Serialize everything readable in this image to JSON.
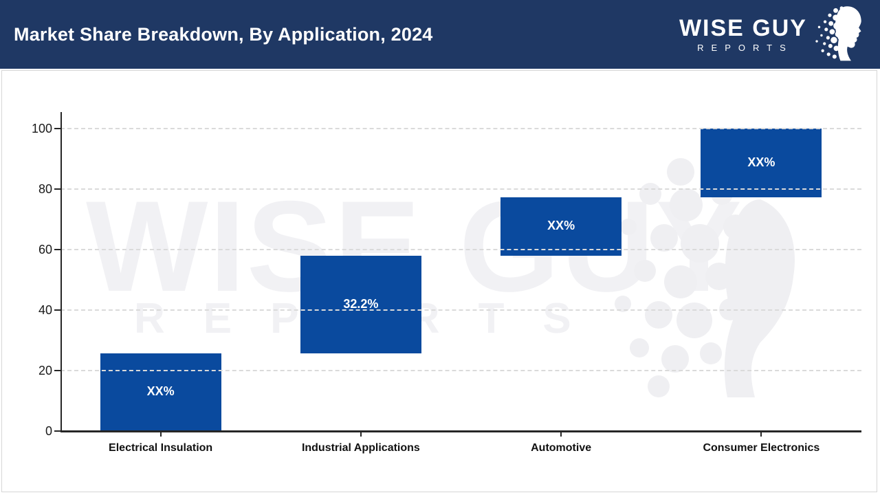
{
  "header": {
    "title": "Market Share Breakdown, By Application, 2024",
    "brand": {
      "line1": "WISE GUY",
      "line2": "REPORTS"
    }
  },
  "watermark": {
    "line1": "WISE GUY",
    "line2": "REPORTS"
  },
  "colors": {
    "header_bg": "#1f3864",
    "bar": "#0a4a9e",
    "grid": "#dadada",
    "axis": "#262626",
    "bar_label_text": "#ffffff",
    "watermark_text": "#f1f1f4"
  },
  "chart_data": {
    "type": "bar",
    "subtype": "waterfall-floating-bars",
    "title": "Market Share Breakdown, By Application, 2024",
    "categories": [
      "Electrical Insulation",
      "Industrial Applications",
      "Automotive",
      "Consumer Electronics"
    ],
    "segments": [
      {
        "category": "Electrical Insulation",
        "start": 0,
        "end": 25.8,
        "label": "XX%"
      },
      {
        "category": "Industrial Applications",
        "start": 25.8,
        "end": 58.0,
        "label": "32.2%"
      },
      {
        "category": "Automotive",
        "start": 58.0,
        "end": 77.3,
        "label": "XX%"
      },
      {
        "category": "Consumer Electronics",
        "start": 77.3,
        "end": 100,
        "label": "XX%"
      }
    ],
    "y_ticks": [
      0,
      20,
      40,
      60,
      80,
      100
    ],
    "ylim": [
      0,
      105.5
    ],
    "xlabel": "",
    "ylabel": "",
    "grid": "horizontal-dashed-over-bars",
    "legend": "none",
    "bar_color": "#0a4a9e"
  }
}
